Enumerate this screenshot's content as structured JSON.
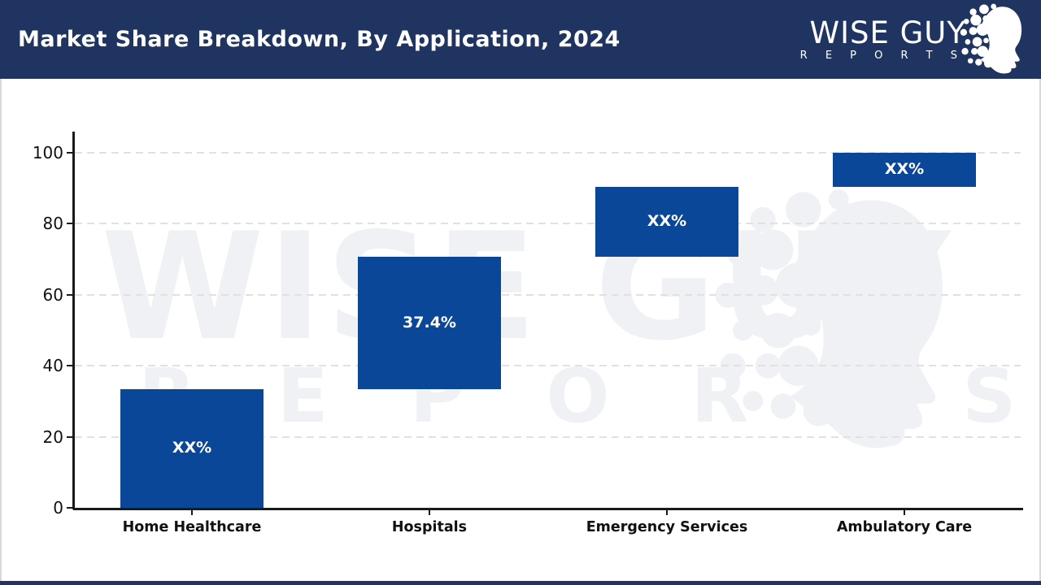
{
  "header": {
    "title": "Market Share Breakdown, By Application, 2024",
    "brand": {
      "line1": "WISE GUY",
      "line2": "R E P O R T S"
    }
  },
  "watermark": {
    "line1": "WISE GUY",
    "line2": "R E P O R T S"
  },
  "chart_data": {
    "type": "bar",
    "subtype": "waterfall",
    "title": "Market Share Breakdown, By Application, 2024",
    "categories": [
      "Home Healthcare",
      "Hospitals",
      "Emergency Services",
      "Ambulatory Care"
    ],
    "segments": [
      {
        "category": "Home Healthcare",
        "start": 0,
        "end": 33.3,
        "value": 33.3,
        "label": "XX%"
      },
      {
        "category": "Hospitals",
        "start": 33.3,
        "end": 70.7,
        "value": 37.4,
        "label": "37.4%"
      },
      {
        "category": "Emergency Services",
        "start": 70.7,
        "end": 90.3,
        "value": 19.6,
        "label": "XX%"
      },
      {
        "category": "Ambulatory Care",
        "start": 90.3,
        "end": 100,
        "value": 9.7,
        "label": "XX%"
      }
    ],
    "ylim": [
      0,
      100
    ],
    "yticks": [
      0,
      20,
      40,
      60,
      80,
      100
    ],
    "xlabel": "",
    "ylabel": "",
    "grid": "horizontal-dashed",
    "legend": "none"
  },
  "colors": {
    "header_bg": "#203461",
    "footer_bg": "#203461",
    "bar": "#0a4799",
    "bar_label": "#ffffff",
    "grid": "#e1e1e1",
    "axis": "#1a1a1a",
    "watermark": "#f0f1f4"
  }
}
